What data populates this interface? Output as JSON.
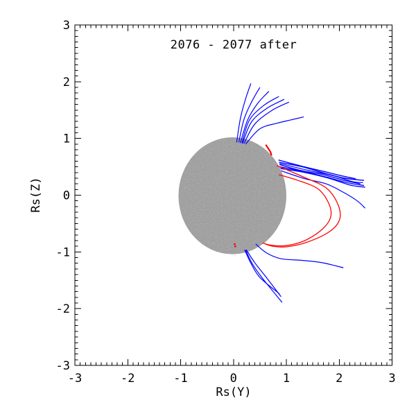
{
  "chart_data": {
    "type": "line",
    "title": "2076 - 2077 after",
    "xlabel": "Rs(Y)",
    "ylabel": "Rs(Z)",
    "xlim": [
      -3,
      3
    ],
    "ylim": [
      -3,
      3
    ],
    "x_ticks": [
      "-3",
      "-2",
      "-1",
      "0",
      "1",
      "2",
      "3"
    ],
    "y_ticks": [
      "-3",
      "-2",
      "-1",
      "0",
      "1",
      "2",
      "3"
    ],
    "minor_tick_step": 0.1,
    "grid": false,
    "legend": null,
    "colors": {
      "open": "#0000ff",
      "closed": "#ff0000",
      "sphere": "#9e9e9e",
      "axis": "#000000",
      "background": "#ffffff"
    },
    "sphere": {
      "cx": -0.02,
      "cy": -0.01,
      "rx": 1.02,
      "ry": 1.03
    },
    "field_lines": [
      {
        "kind": "open",
        "w": 1.2,
        "points": [
          [
            0.06,
            0.93
          ],
          [
            0.13,
            1.35
          ],
          [
            0.23,
            1.7
          ],
          [
            0.33,
            1.97
          ]
        ]
      },
      {
        "kind": "open",
        "w": 1.2,
        "points": [
          [
            0.1,
            0.93
          ],
          [
            0.2,
            1.34
          ],
          [
            0.34,
            1.64
          ],
          [
            0.5,
            1.9
          ]
        ]
      },
      {
        "kind": "open",
        "w": 1.2,
        "points": [
          [
            0.13,
            0.92
          ],
          [
            0.27,
            1.33
          ],
          [
            0.46,
            1.62
          ],
          [
            0.67,
            1.83
          ]
        ]
      },
      {
        "kind": "open",
        "w": 1.2,
        "points": [
          [
            0.16,
            0.92
          ],
          [
            0.3,
            1.32
          ],
          [
            0.57,
            1.58
          ],
          [
            0.86,
            1.74
          ]
        ]
      },
      {
        "kind": "open",
        "w": 1.2,
        "points": [
          [
            0.17,
            0.91
          ],
          [
            0.34,
            1.29
          ],
          [
            0.63,
            1.53
          ],
          [
            0.96,
            1.69
          ]
        ]
      },
      {
        "kind": "open",
        "w": 1.2,
        "points": [
          [
            0.2,
            0.91
          ],
          [
            0.4,
            1.25
          ],
          [
            0.72,
            1.49
          ],
          [
            1.05,
            1.64
          ]
        ]
      },
      {
        "kind": "open",
        "w": 1.2,
        "points": [
          [
            0.23,
            0.9
          ],
          [
            0.5,
            1.17
          ],
          [
            0.83,
            1.27
          ],
          [
            1.1,
            1.33
          ],
          [
            1.33,
            1.38
          ]
        ]
      },
      {
        "kind": "open",
        "w": 1.4,
        "points": [
          [
            0.85,
            0.62
          ],
          [
            1.25,
            0.52
          ],
          [
            1.7,
            0.42
          ],
          [
            2.05,
            0.34
          ],
          [
            2.31,
            0.29
          ]
        ]
      },
      {
        "kind": "open",
        "w": 1.4,
        "points": [
          [
            0.86,
            0.58
          ],
          [
            1.3,
            0.5
          ],
          [
            1.75,
            0.38
          ],
          [
            2.1,
            0.3
          ],
          [
            2.47,
            0.26
          ]
        ]
      },
      {
        "kind": "open",
        "w": 1.4,
        "points": [
          [
            0.87,
            0.54
          ],
          [
            1.25,
            0.44
          ],
          [
            1.7,
            0.36
          ],
          [
            2.1,
            0.26
          ],
          [
            2.4,
            0.2
          ]
        ]
      },
      {
        "kind": "open",
        "w": 1.4,
        "points": [
          [
            0.88,
            0.5
          ],
          [
            1.3,
            0.42
          ],
          [
            1.75,
            0.32
          ],
          [
            2.15,
            0.22
          ],
          [
            2.47,
            0.17
          ]
        ]
      },
      {
        "kind": "open",
        "w": 1.4,
        "points": [
          [
            0.89,
            0.47
          ],
          [
            1.35,
            0.4
          ],
          [
            1.8,
            0.3
          ],
          [
            2.2,
            0.18
          ],
          [
            2.49,
            0.14
          ]
        ]
      },
      {
        "kind": "open",
        "w": 1.2,
        "points": [
          [
            0.87,
            0.56
          ],
          [
            1.4,
            0.44
          ],
          [
            1.9,
            0.34
          ],
          [
            2.25,
            0.24
          ],
          [
            2.45,
            0.22
          ]
        ]
      },
      {
        "kind": "open",
        "w": 1.2,
        "points": [
          [
            0.9,
            0.43
          ],
          [
            1.35,
            0.29
          ],
          [
            1.75,
            0.2
          ],
          [
            2.08,
            0.05
          ],
          [
            2.34,
            -0.1
          ],
          [
            2.49,
            -0.23
          ]
        ]
      },
      {
        "kind": "open",
        "w": 1.2,
        "points": [
          [
            0.42,
            -0.86
          ],
          [
            0.63,
            -1.02
          ],
          [
            0.9,
            -1.12
          ],
          [
            1.31,
            -1.15
          ],
          [
            1.68,
            -1.19
          ],
          [
            2.08,
            -1.28
          ]
        ]
      },
      {
        "kind": "open",
        "w": 1.2,
        "points": [
          [
            0.21,
            -0.96
          ],
          [
            0.33,
            -1.2
          ],
          [
            0.5,
            -1.45
          ],
          [
            0.87,
            -1.74
          ]
        ]
      },
      {
        "kind": "open",
        "w": 1.2,
        "points": [
          [
            0.23,
            -0.97
          ],
          [
            0.37,
            -1.23
          ],
          [
            0.57,
            -1.49
          ],
          [
            0.92,
            -1.89
          ]
        ]
      },
      {
        "kind": "open",
        "w": 1.2,
        "points": [
          [
            0.24,
            -0.96
          ],
          [
            0.41,
            -1.2
          ],
          [
            0.63,
            -1.46
          ],
          [
            0.9,
            -1.79
          ]
        ]
      },
      {
        "kind": "closed",
        "w": 1.3,
        "points": [
          [
            0.82,
            0.52
          ],
          [
            1.3,
            0.33
          ],
          [
            1.75,
            0.13
          ],
          [
            1.97,
            -0.15
          ],
          [
            2.01,
            -0.42
          ],
          [
            1.82,
            -0.64
          ],
          [
            1.39,
            -0.83
          ],
          [
            1.0,
            -0.91
          ],
          [
            0.74,
            -0.9
          ],
          [
            0.55,
            -0.84
          ]
        ]
      },
      {
        "kind": "closed",
        "w": 1.3,
        "points": [
          [
            0.86,
            0.36
          ],
          [
            1.22,
            0.26
          ],
          [
            1.6,
            0.11
          ],
          [
            1.8,
            -0.14
          ],
          [
            1.84,
            -0.38
          ],
          [
            1.68,
            -0.6
          ],
          [
            1.35,
            -0.8
          ],
          [
            0.99,
            -0.89
          ],
          [
            0.7,
            -0.88
          ],
          [
            0.58,
            -0.85
          ]
        ]
      },
      {
        "kind": "closed",
        "w": 2.2,
        "points": [
          [
            0.61,
            0.89
          ],
          [
            0.66,
            0.82
          ],
          [
            0.7,
            0.76
          ],
          [
            0.72,
            0.7
          ]
        ]
      }
    ],
    "markers": [
      {
        "kind": "closed",
        "x": 0.02,
        "y": -0.86
      },
      {
        "kind": "closed",
        "x": 0.03,
        "y": -0.9
      }
    ]
  }
}
